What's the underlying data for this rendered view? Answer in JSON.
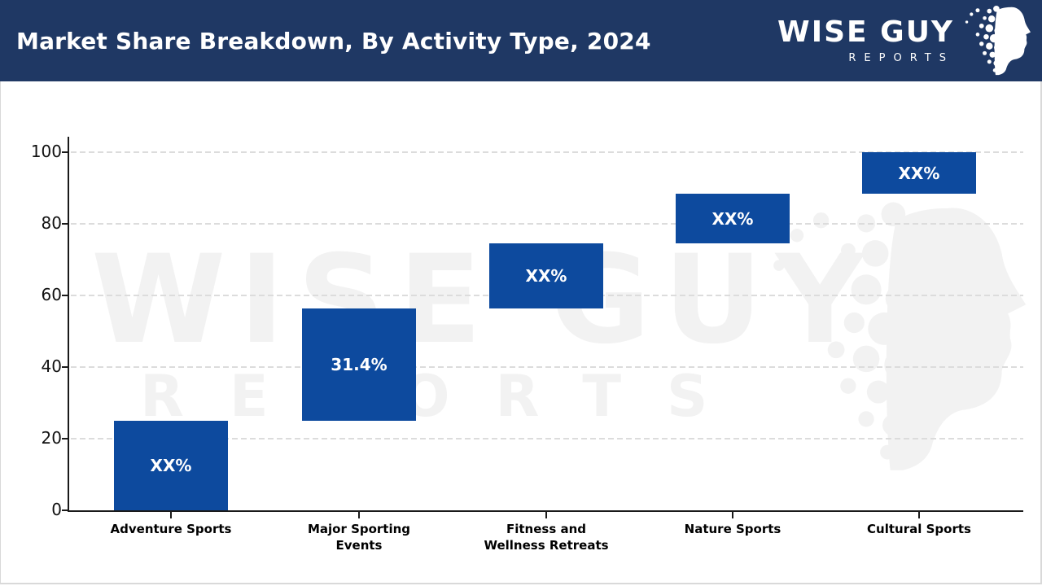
{
  "header": {
    "title": "Market Share Breakdown, By Activity Type, 2024",
    "logo": {
      "wordmark": "WISE GUY",
      "subtitle": "REPORTS"
    }
  },
  "watermark": {
    "line1": "WISE GUY",
    "line2": "REPORTS"
  },
  "chart_data": {
    "type": "bar",
    "subtype": "floating_segment_waterfall",
    "title": "Market Share Breakdown, By Activity Type, 2024",
    "categories": [
      "Adventure Sports",
      "Major Sporting\nEvents",
      "Fitness and\nWellness Retreats",
      "Nature Sports",
      "Cultural Sports"
    ],
    "bars": [
      {
        "category": "Adventure Sports",
        "start": 0,
        "end": 25,
        "label": "XX%"
      },
      {
        "category": "Major Sporting Events",
        "start": 25,
        "end": 56.4,
        "label": "31.4%"
      },
      {
        "category": "Fitness and Wellness Retreats",
        "start": 56.4,
        "end": 74.5,
        "label": "XX%"
      },
      {
        "category": "Nature Sports",
        "start": 74.5,
        "end": 88.3,
        "label": "XX%"
      },
      {
        "category": "Cultural Sports",
        "start": 88.3,
        "end": 100,
        "label": "XX%"
      }
    ],
    "y_ticks": [
      0,
      20,
      40,
      60,
      80,
      100
    ],
    "ylim": [
      0,
      105
    ],
    "xlabel": "",
    "ylabel": "",
    "grid": {
      "horizontal": true,
      "style": "dashed"
    },
    "legend": "none",
    "colors": {
      "bar": "#0d4a9e",
      "bar_label_text": "#ffffff",
      "axis": "#1a1a1a",
      "gridline": "#dcdcdc",
      "header_bg": "#1f3864",
      "watermark": "#f2f2f2"
    }
  }
}
